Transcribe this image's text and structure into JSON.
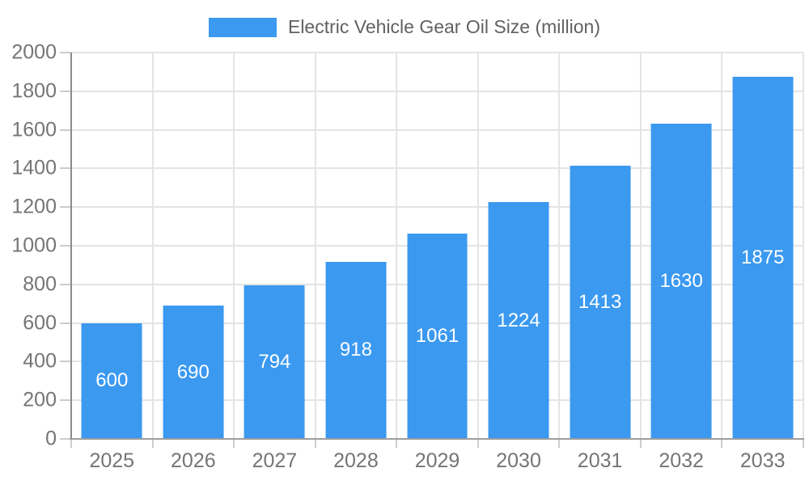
{
  "chart_data": {
    "type": "bar",
    "title": "Electric Vehicle Gear Oil Size (million)",
    "categories": [
      "2025",
      "2026",
      "2027",
      "2028",
      "2029",
      "2030",
      "2031",
      "2032",
      "2033"
    ],
    "values": [
      600,
      690,
      794,
      918,
      1061,
      1224,
      1413,
      1630,
      1875
    ],
    "xlabel": "",
    "ylabel": "",
    "ylim": [
      0,
      2000
    ],
    "yticks": [
      0,
      200,
      400,
      600,
      800,
      1000,
      1200,
      1400,
      1600,
      1800,
      2000
    ],
    "grid": true,
    "legend_position": "top",
    "bar_labels_inside": true
  },
  "legend": {
    "items": [
      {
        "label": "Electric Vehicle Gear Oil Size (million)",
        "color": "#3B99F0"
      }
    ]
  },
  "colors": {
    "bar": "#3B99F0",
    "value_label": "#ffffff",
    "axis_text": "#757575",
    "legend_text": "#616161",
    "gridline": "#e4e4e4",
    "y_axis_line": "#8a8a8a",
    "x_axis_line": "#9e9e9e",
    "tick": "#cccccc",
    "background": "#ffffff"
  }
}
